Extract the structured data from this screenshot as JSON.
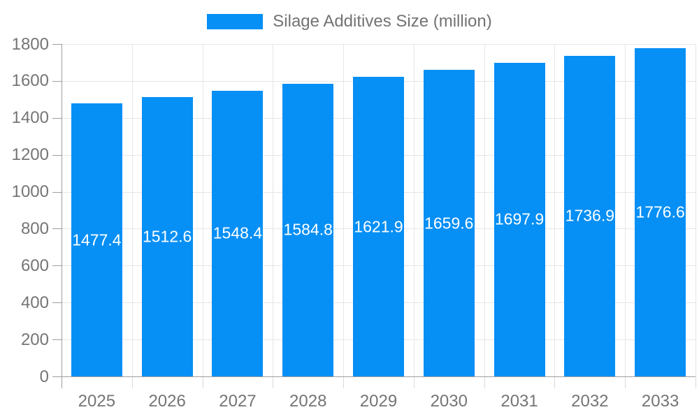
{
  "legend": {
    "label": "Silage Additives Size (million)"
  },
  "chart_data": {
    "type": "bar",
    "title": "Silage Additives Size (million)",
    "categories": [
      "2025",
      "2026",
      "2027",
      "2028",
      "2029",
      "2030",
      "2031",
      "2032",
      "2033"
    ],
    "values": [
      1477.4,
      1512.6,
      1548.4,
      1584.8,
      1621.9,
      1659.6,
      1697.9,
      1736.9,
      1776.6
    ],
    "value_labels": [
      "1477.4",
      "1512.6",
      "1548.4",
      "1584.8",
      "1621.9",
      "1659.6",
      "1697.9",
      "1736.9",
      "1776.6"
    ],
    "xlabel": "",
    "ylabel": "",
    "ylim": [
      0,
      1800
    ],
    "ytick_step": 200,
    "ytick_labels": [
      "0",
      "200",
      "400",
      "600",
      "800",
      "1000",
      "1200",
      "1400",
      "1600",
      "1800"
    ],
    "grid": true,
    "legend_position": "top-center",
    "colors": {
      "bar": "#068ff5",
      "grid": "#e6e6e6",
      "axis": "#9e9e9e",
      "minor_tick": "#d9d9d9",
      "tick_text": "#757575",
      "legend_text": "#737373",
      "value_text": "#ffffff"
    }
  }
}
